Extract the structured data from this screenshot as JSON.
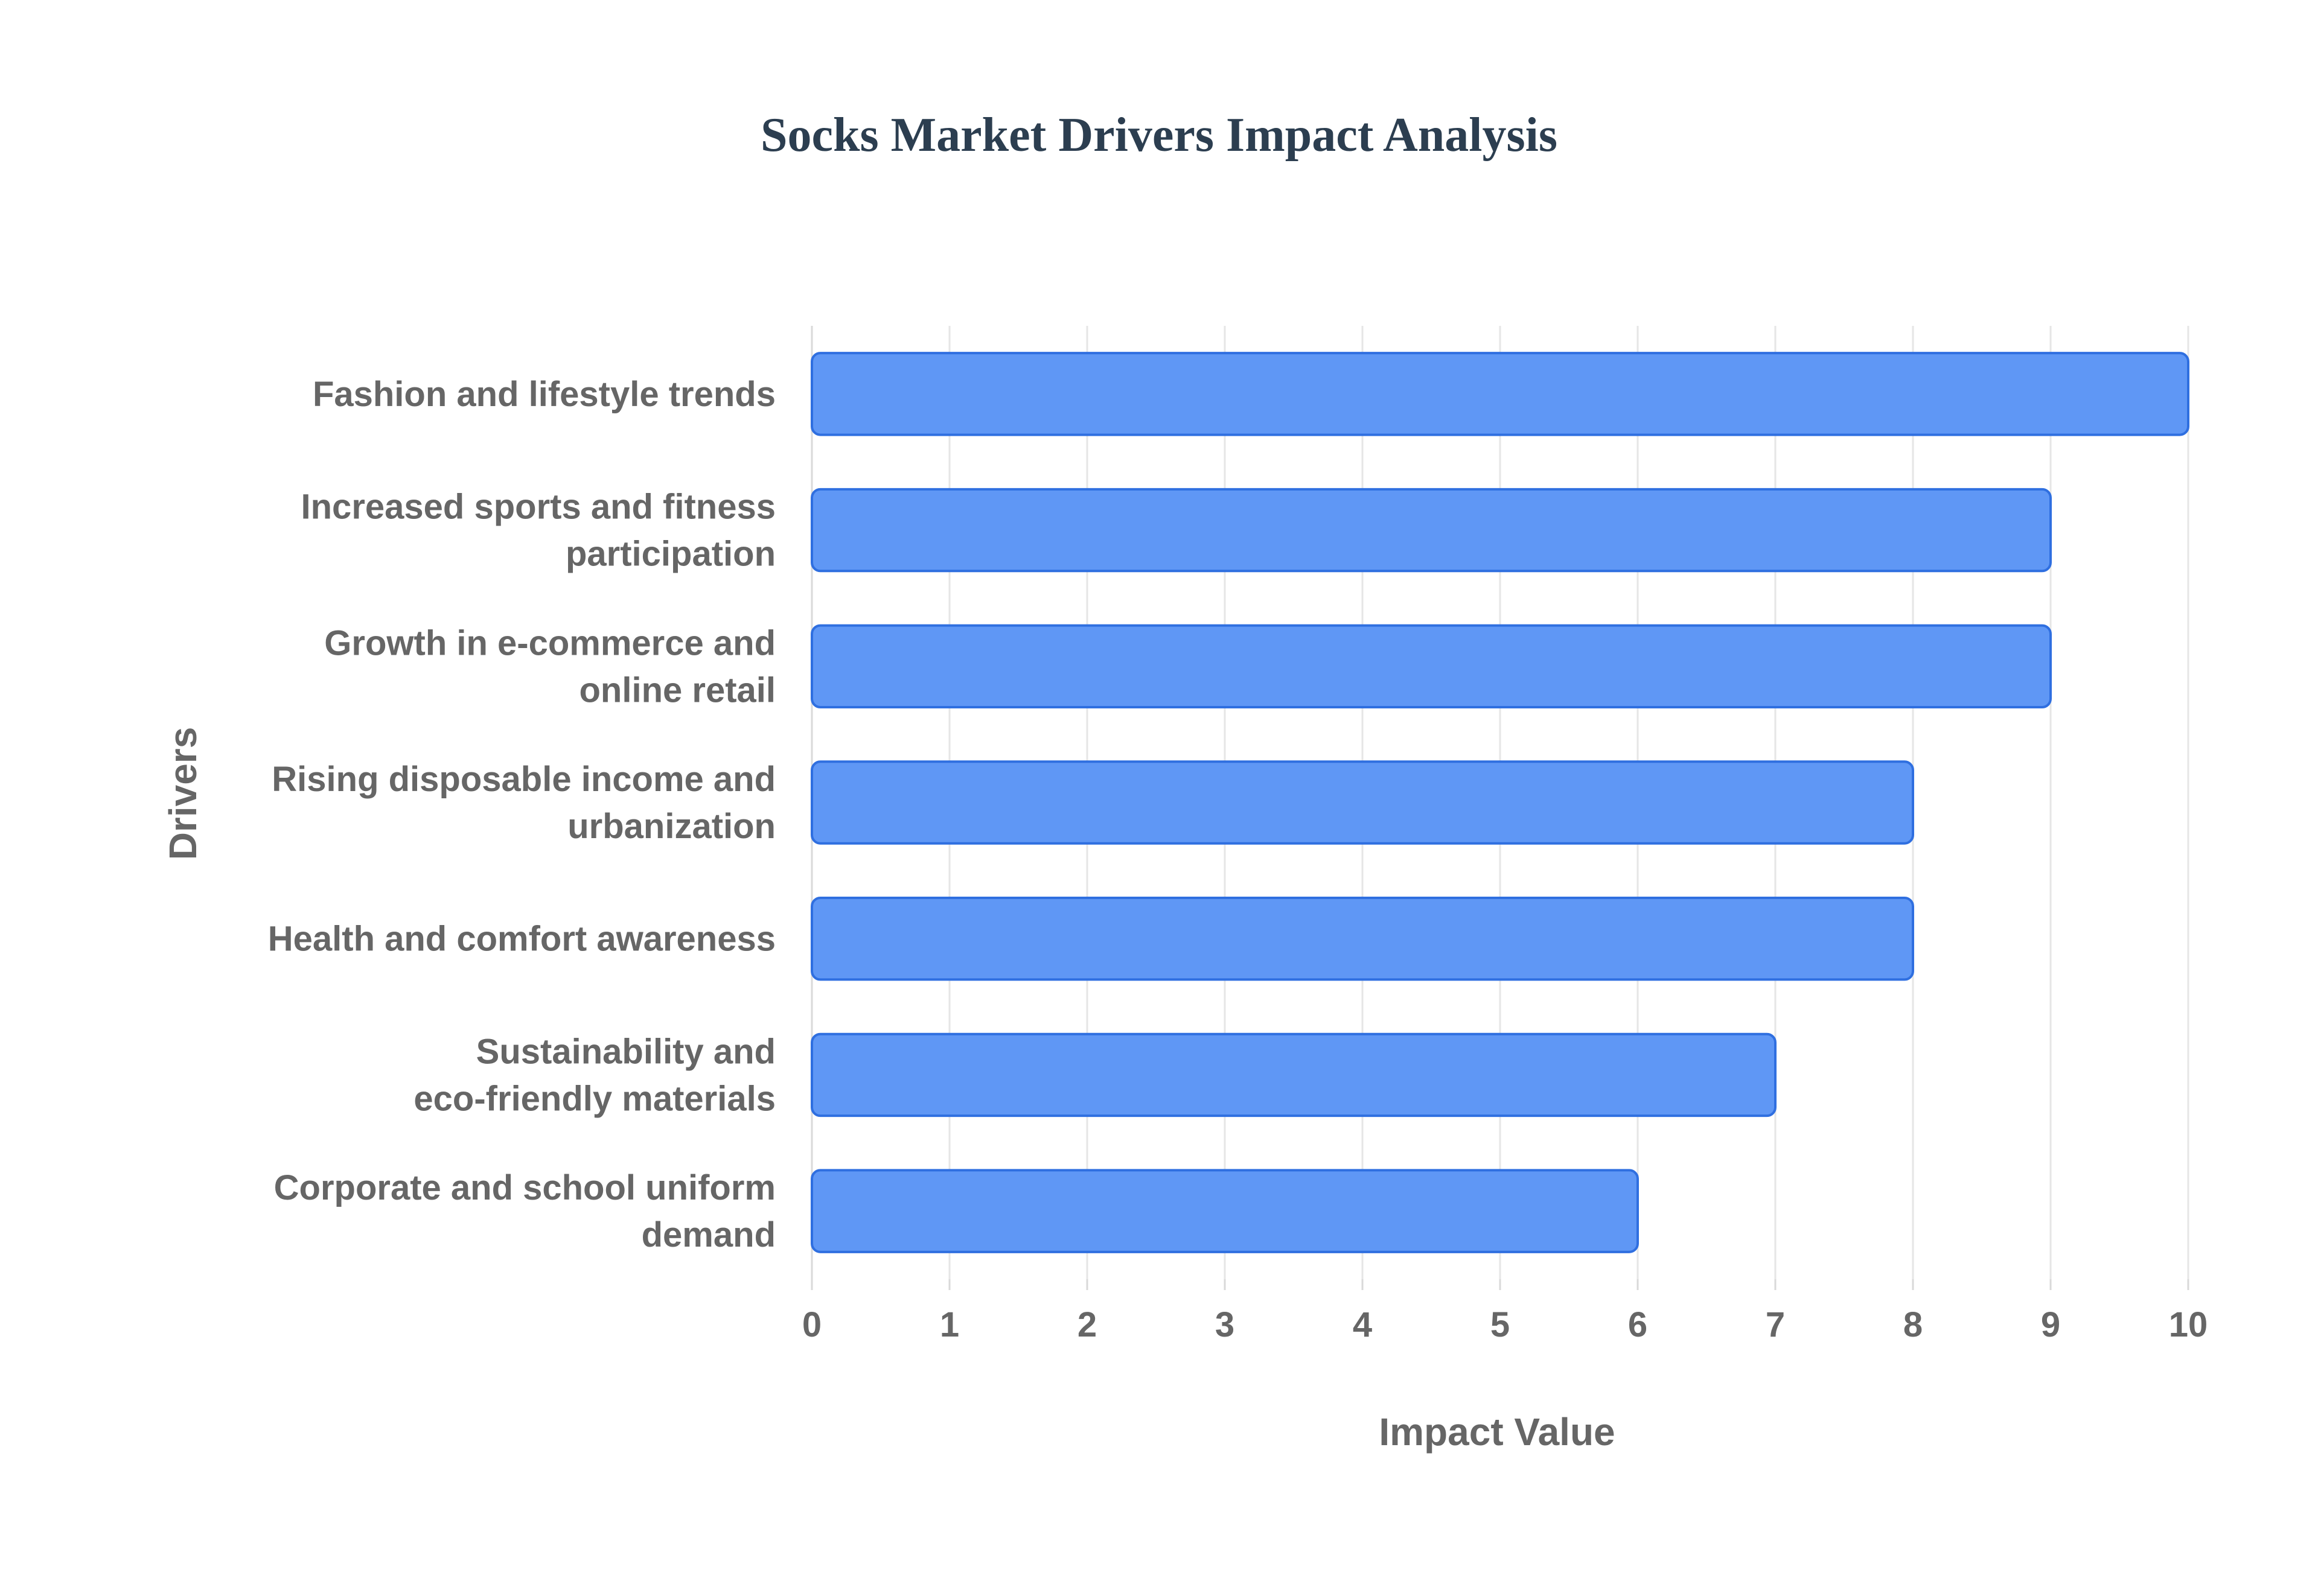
{
  "chart_data": {
    "type": "bar",
    "orientation": "horizontal",
    "title": "Socks Market Drivers Impact Analysis",
    "xlabel": "Impact Value",
    "ylabel": "Drivers",
    "xlim": [
      0,
      10
    ],
    "x_ticks": [
      0,
      1,
      2,
      3,
      4,
      5,
      6,
      7,
      8,
      9,
      10
    ],
    "grid": true,
    "categories": [
      [
        "Fashion and lifestyle trends"
      ],
      [
        "Increased sports and fitness",
        "participation"
      ],
      [
        "Growth in e-commerce and",
        "online retail"
      ],
      [
        "Rising disposable income and",
        "urbanization"
      ],
      [
        "Health and comfort awareness"
      ],
      [
        "Sustainability and",
        "eco-friendly materials"
      ],
      [
        "Corporate and school uniform",
        "demand"
      ]
    ],
    "values": [
      10,
      9,
      9,
      8,
      8,
      7,
      6
    ],
    "colors": {
      "bar_fill": "#5f97f5",
      "bar_stroke": "#2f6fe0",
      "title": "#2c3e50",
      "text": "#666666",
      "grid": "#e6e6e6"
    }
  }
}
